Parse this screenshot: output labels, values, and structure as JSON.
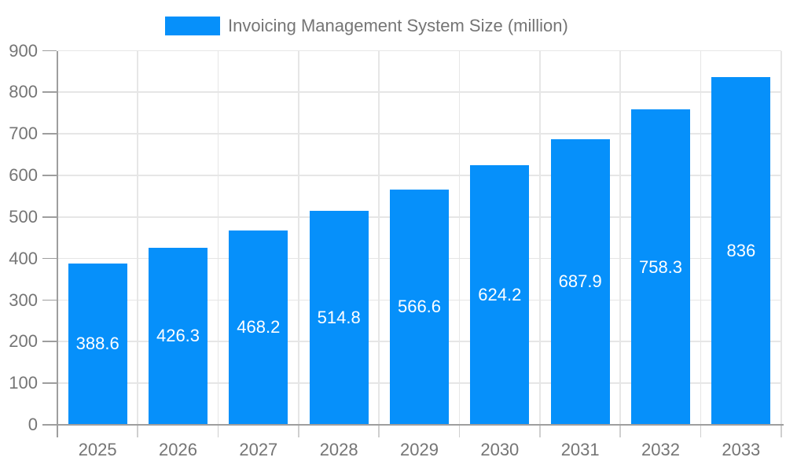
{
  "legend": {
    "label": "Invoicing Management System Size (million)",
    "swatch_color": "#0690fa"
  },
  "chart_data": {
    "type": "bar",
    "title": "Invoicing Management System Size (million)",
    "categories": [
      "2025",
      "2026",
      "2027",
      "2028",
      "2029",
      "2030",
      "2031",
      "2032",
      "2033"
    ],
    "series": [
      {
        "name": "Invoicing Management System Size (million)",
        "values": [
          388.6,
          426.3,
          468.2,
          514.8,
          566.6,
          624.2,
          687.9,
          758.3,
          836
        ]
      }
    ],
    "value_labels": [
      "388.6",
      "426.3",
      "468.2",
      "514.8",
      "566.6",
      "624.2",
      "687.9",
      "758.3",
      "836"
    ],
    "xlabel": "",
    "ylabel": "",
    "ylim": [
      0,
      900
    ],
    "yticks": [
      0,
      100,
      200,
      300,
      400,
      500,
      600,
      700,
      800,
      900
    ],
    "grid": true,
    "legend_position": "top",
    "colors": {
      "bar": "#0690fa",
      "axis_text": "#757575",
      "value_text": "#ffffff",
      "gridline": "#e6e6e6",
      "axis_line": "#9e9e9e",
      "x_tick": "#cfcfcf",
      "background": "#ffffff"
    }
  }
}
